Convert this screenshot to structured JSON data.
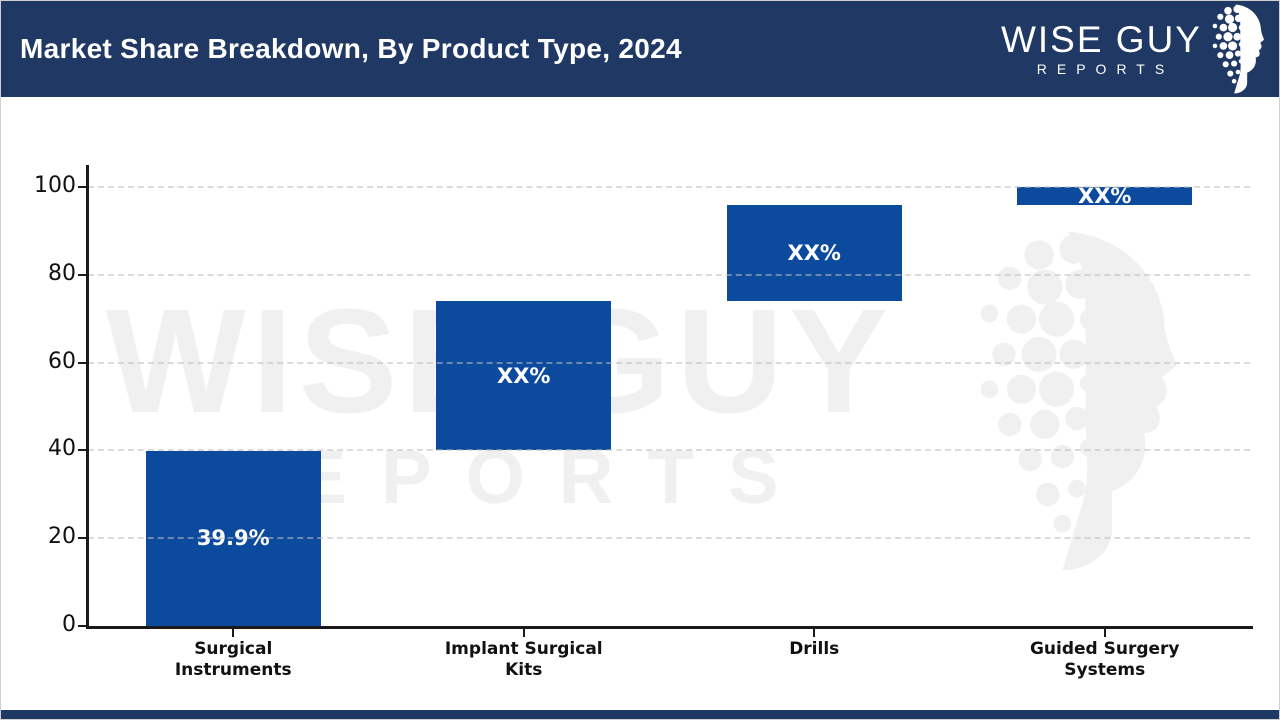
{
  "header": {
    "title": "Market Share Breakdown, By Product Type, 2024",
    "logo": {
      "line1": "WISE GUY",
      "line2": "REPORTS"
    }
  },
  "watermark": {
    "line1": "WISE GUY",
    "line2": "REPORTS"
  },
  "chart_data": {
    "type": "bar",
    "subtype": "waterfall",
    "title": "Market Share Breakdown, By Product Type, 2024",
    "xlabel": "",
    "ylabel": "",
    "ylim": [
      0,
      105
    ],
    "yticks": [
      0,
      20,
      40,
      60,
      80,
      100
    ],
    "grid": "horizontal-dashed",
    "legend": "none",
    "categories": [
      [
        "Surgical",
        "Instruments"
      ],
      [
        "Implant Surgical",
        "Kits"
      ],
      [
        "Drills"
      ],
      [
        "Guided Surgery",
        "Systems"
      ]
    ],
    "segments": [
      {
        "start": 0,
        "end": 39.9,
        "label": "39.9%"
      },
      {
        "start": 40,
        "end": 74,
        "label": "XX%"
      },
      {
        "start": 74,
        "end": 96,
        "label": "XX%"
      },
      {
        "start": 96,
        "end": 100,
        "label": "XX%"
      }
    ],
    "bar_color": "#0c4a9e",
    "bar_label_color": "#ffffff"
  },
  "colors": {
    "header_bg": "#203864",
    "footer_bg": "#203864",
    "axis": "#1a1a1a",
    "grid": "#dcdcdc",
    "watermark": "#f0f0f0"
  }
}
